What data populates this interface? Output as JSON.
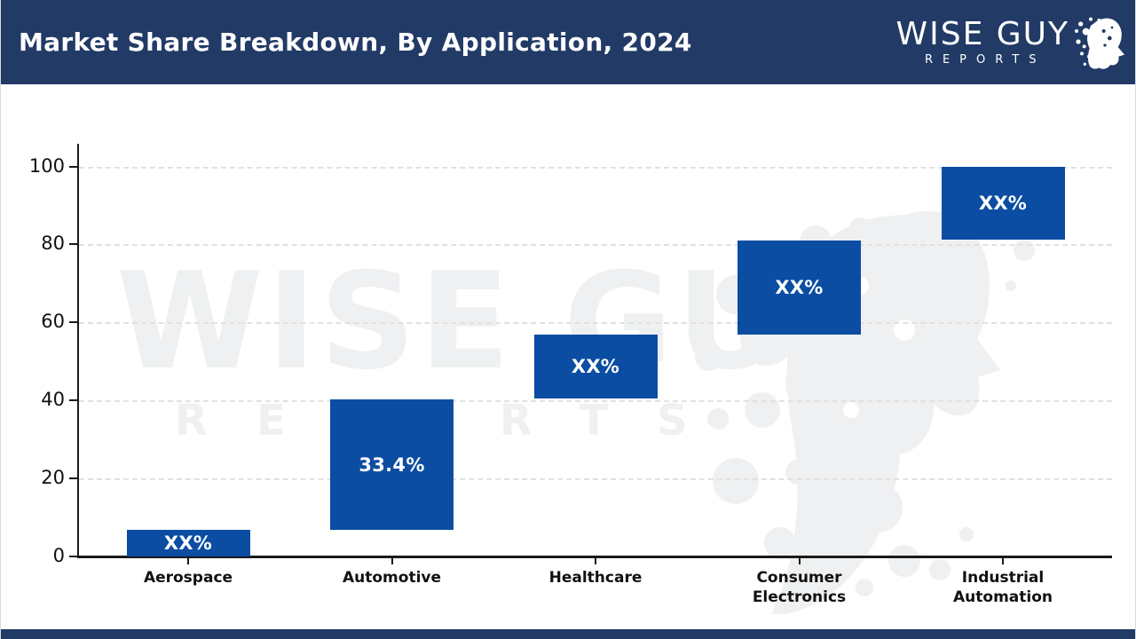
{
  "header": {
    "title": "Market Share Breakdown, By Application, 2024",
    "logo_line1": "WISE GUY",
    "logo_line2": "REPORTS"
  },
  "watermark": {
    "line1": "WISE GUY",
    "line2": "REPORTS"
  },
  "chart_data": {
    "type": "bar",
    "subtype": "waterfall",
    "title": "Market Share Breakdown, By Application, 2024",
    "categories": [
      "Aerospace",
      "Automotive",
      "Healthcare",
      "Consumer Electronics",
      "Industrial Automation"
    ],
    "bars": [
      {
        "category": "Aerospace",
        "label": "XX%",
        "start": 0,
        "end": 6.8
      },
      {
        "category": "Automotive",
        "label": "33.4%",
        "start": 6.8,
        "end": 40.2
      },
      {
        "category": "Healthcare",
        "label": "XX%",
        "start": 40.6,
        "end": 56.9
      },
      {
        "category": "Consumer Electronics",
        "label": "XX%",
        "start": 57.0,
        "end": 81.0
      },
      {
        "category": "Industrial Automation",
        "label": "XX%",
        "start": 81.3,
        "end": 100.0
      }
    ],
    "y_ticks": [
      0,
      20,
      40,
      60,
      80,
      100
    ],
    "ylim": [
      0,
      104
    ],
    "xlabel": "",
    "ylabel": "",
    "grid": "horizontal-dashed",
    "legend": "none",
    "bar_color": "#0b4da2"
  },
  "colors": {
    "header_bg": "#213a66",
    "footer_bg": "#213a66",
    "bar": "#0b4da2",
    "watermark": "#eef0f1",
    "grid": "#e1e1e1",
    "axis": "#1a1a1a"
  }
}
